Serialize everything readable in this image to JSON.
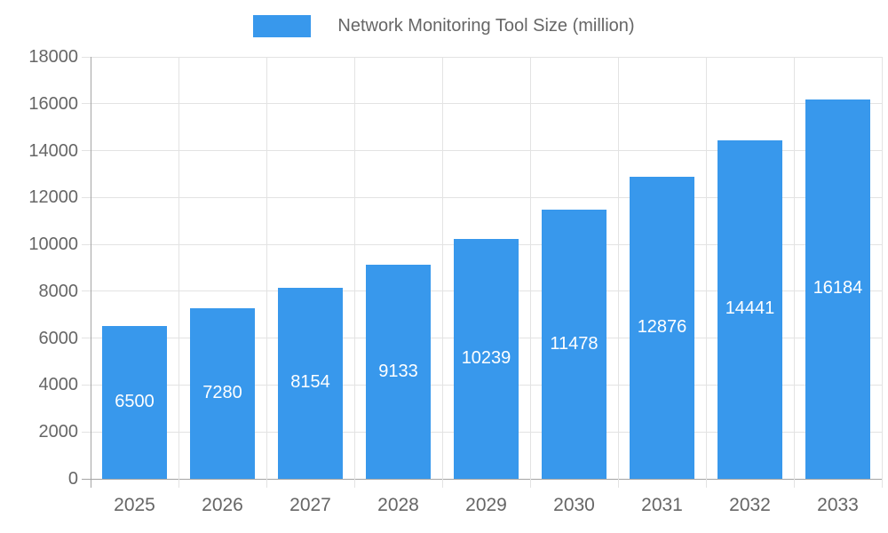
{
  "chart_data": {
    "type": "bar",
    "title": "Network Monitoring Tool Size (million)",
    "legend": {
      "label": "Network Monitoring Tool Size (million)",
      "position": "top"
    },
    "categories": [
      "2025",
      "2026",
      "2027",
      "2028",
      "2029",
      "2030",
      "2031",
      "2032",
      "2033"
    ],
    "series": [
      {
        "name": "Network Monitoring Tool Size (million)",
        "values": [
          6500,
          7280,
          8154,
          9133,
          10239,
          11478,
          12876,
          14441,
          16184
        ]
      }
    ],
    "value_labels_visible": true,
    "xlabel": "",
    "ylabel": "",
    "ylim": [
      0,
      18000
    ],
    "yticks": [
      0,
      2000,
      4000,
      6000,
      8000,
      10000,
      12000,
      14000,
      16000,
      18000
    ],
    "grid": true
  },
  "colors": {
    "bar": "#3898EC",
    "grid": "#E3E3E3",
    "axis": "#A5A5A5",
    "tick_text": "#666666",
    "legend_text": "#666666",
    "value_label_text": "#FFFFFF",
    "background": "#FFFFFF"
  }
}
